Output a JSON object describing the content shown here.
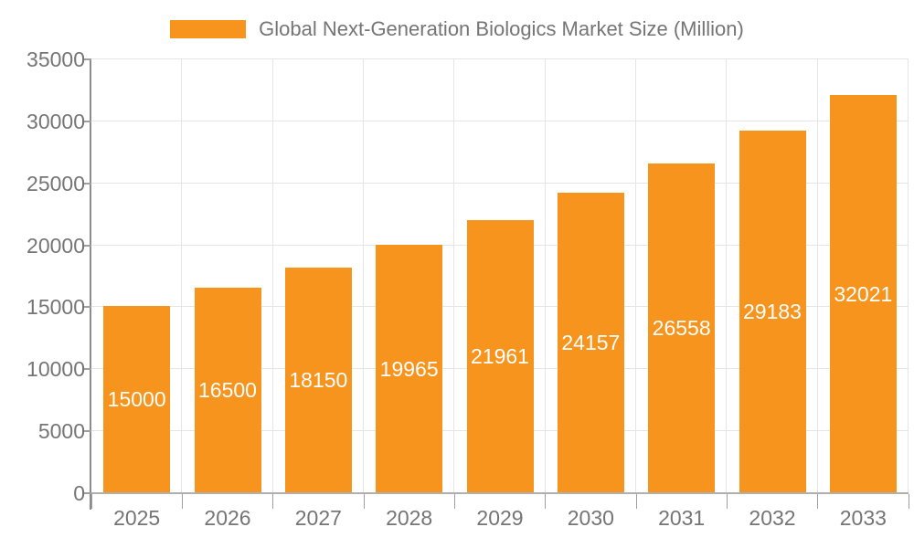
{
  "chart_data": {
    "type": "bar",
    "title": "Global Next-Generation Biologics Market Size (Million)",
    "legend": [
      {
        "label": "Global Next-Generation Biologics Market Size (Million)",
        "swatch_color": "#F7941E"
      }
    ],
    "categories": [
      "2025",
      "2026",
      "2027",
      "2028",
      "2029",
      "2030",
      "2031",
      "2032",
      "2033"
    ],
    "values": [
      15000,
      16500,
      18150,
      19965,
      21961,
      24157,
      26558,
      29183,
      32021
    ],
    "data_labels": [
      "15000",
      "16500",
      "18150",
      "19965",
      "21961",
      "24157",
      "26558",
      "29183",
      "32021"
    ],
    "xlabel": "",
    "ylabel": "",
    "ylim": [
      0,
      35000
    ],
    "yticks": [
      0,
      5000,
      10000,
      15000,
      20000,
      25000,
      30000,
      35000
    ],
    "grid": true,
    "legend_position": "top"
  },
  "colors": {
    "bar": "#F7941E",
    "grid": "#E5E5E5",
    "y_axis_line": "#8C8C8C",
    "baseline": "#B0B0B0",
    "tick": "#9E9E9E",
    "text": "#757575",
    "data_label": "#FFFFFF",
    "background": "#FFFFFF"
  }
}
